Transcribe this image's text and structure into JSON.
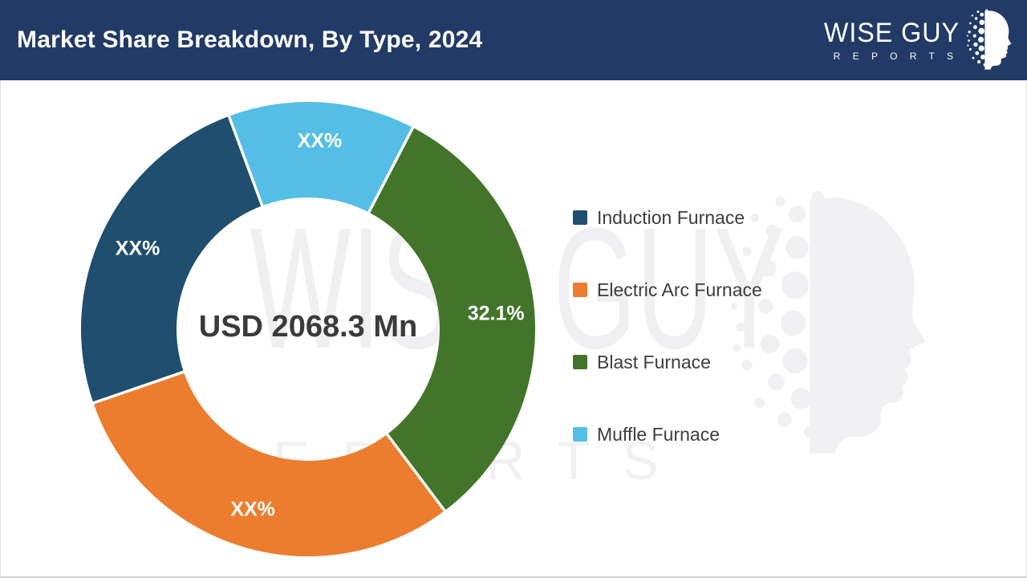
{
  "header": {
    "title": "Market Share Breakdown, By Type, 2024",
    "logo": {
      "line1": "WISE GUY",
      "line2": "R E P O R T S"
    }
  },
  "watermark": {
    "line1": "WISE GUY",
    "line2": "R E P O R T S"
  },
  "brand_colors": {
    "header_background": "#213a66",
    "header_text": "#ffffff",
    "center_label_text": "#3a3a3a",
    "legend_text": "#3d3d3d",
    "watermark": "#f0f0f2"
  },
  "chart_data": {
    "type": "pie",
    "subtype": "donut",
    "title": "Market Share Breakdown, By Type, 2024",
    "center_label": "USD 2068.3 Mn",
    "legend_position": "right",
    "rotation_start_deg": -20.4,
    "segments": [
      {
        "label": "Induction Furnace",
        "value_label": "XX%",
        "percent_est": 24.6,
        "color": "#1f4e6e"
      },
      {
        "label": "Electric Arc Furnace",
        "value_label": "XX%",
        "percent_est": 30.0,
        "color": "#ec7d2f"
      },
      {
        "label": "Blast Furnace",
        "value_label": "32.1%",
        "percent_est": 32.1,
        "color": "#42752a"
      },
      {
        "label": "Muffle Furnace",
        "value_label": "XX%",
        "percent_est": 13.3,
        "color": "#55bee6"
      }
    ]
  }
}
